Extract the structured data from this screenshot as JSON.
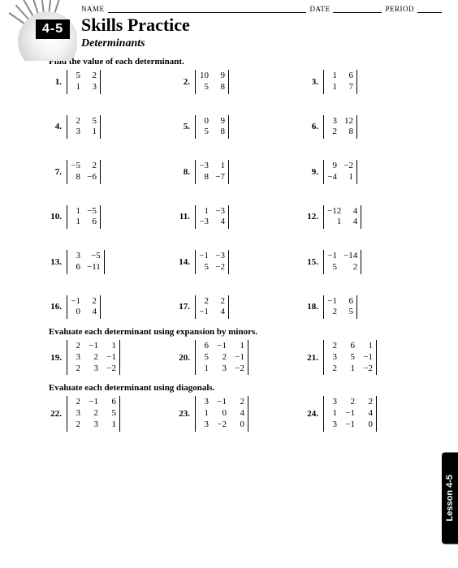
{
  "header": {
    "name_label": "NAME",
    "date_label": "DATE",
    "period_label": "PERIOD"
  },
  "lesson_number": "4-5",
  "title": "Skills Practice",
  "subtitle": "Determinants",
  "section1": "Find the value of each determinant.",
  "section2": "Evaluate each determinant using expansion by minors.",
  "section3": "Evaluate each determinant using diagonals.",
  "side_tab": "Lesson 4-5",
  "problems2x2": [
    {
      "n": "1.",
      "m": [
        "5",
        "2",
        "1",
        "3"
      ]
    },
    {
      "n": "2.",
      "m": [
        "10",
        "9",
        "5",
        "8"
      ]
    },
    {
      "n": "3.",
      "m": [
        "1",
        "6",
        "1",
        "7"
      ]
    },
    {
      "n": "4.",
      "m": [
        "2",
        "5",
        "3",
        "1"
      ]
    },
    {
      "n": "5.",
      "m": [
        "0",
        "9",
        "5",
        "8"
      ]
    },
    {
      "n": "6.",
      "m": [
        "3",
        "12",
        "2",
        "8"
      ]
    },
    {
      "n": "7.",
      "m": [
        "−5",
        "2",
        "8",
        "−6"
      ]
    },
    {
      "n": "8.",
      "m": [
        "−3",
        "1",
        "8",
        "−7"
      ]
    },
    {
      "n": "9.",
      "m": [
        "9",
        "−2",
        "−4",
        "1"
      ]
    },
    {
      "n": "10.",
      "m": [
        "1",
        "−5",
        "1",
        "6"
      ]
    },
    {
      "n": "11.",
      "m": [
        "1",
        "−3",
        "−3",
        "4"
      ]
    },
    {
      "n": "12.",
      "m": [
        "−12",
        "4",
        "1",
        "4"
      ]
    },
    {
      "n": "13.",
      "m": [
        "3",
        "−5",
        "6",
        "−11"
      ]
    },
    {
      "n": "14.",
      "m": [
        "−1",
        "−3",
        "5",
        "−2"
      ]
    },
    {
      "n": "15.",
      "m": [
        "−1",
        "−14",
        "5",
        "2"
      ]
    },
    {
      "n": "16.",
      "m": [
        "−1",
        "2",
        "0",
        "4"
      ]
    },
    {
      "n": "17.",
      "m": [
        "2",
        "2",
        "−1",
        "4"
      ]
    },
    {
      "n": "18.",
      "m": [
        "−1",
        "6",
        "2",
        "5"
      ]
    }
  ],
  "problems3x3a": [
    {
      "n": "19.",
      "m": [
        "2",
        "−1",
        "1",
        "3",
        "2",
        "−1",
        "2",
        "3",
        "−2"
      ]
    },
    {
      "n": "20.",
      "m": [
        "6",
        "−1",
        "1",
        "5",
        "2",
        "−1",
        "1",
        "3",
        "−2"
      ]
    },
    {
      "n": "21.",
      "m": [
        "2",
        "6",
        "1",
        "3",
        "5",
        "−1",
        "2",
        "1",
        "−2"
      ]
    }
  ],
  "problems3x3b": [
    {
      "n": "22.",
      "m": [
        "2",
        "−1",
        "6",
        "3",
        "2",
        "5",
        "2",
        "3",
        "1"
      ]
    },
    {
      "n": "23.",
      "m": [
        "3",
        "−1",
        "2",
        "1",
        "0",
        "4",
        "3",
        "−2",
        "0"
      ]
    },
    {
      "n": "24.",
      "m": [
        "3",
        "2",
        "2",
        "1",
        "−1",
        "4",
        "3",
        "−1",
        "0"
      ]
    }
  ]
}
